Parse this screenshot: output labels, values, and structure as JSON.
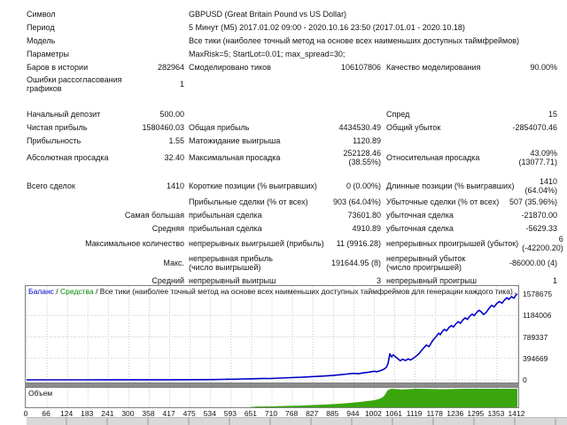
{
  "info": [
    {
      "label": "Символ",
      "value": "GBPUSD (Great Britain Pound vs US Dollar)"
    },
    {
      "label": "Период",
      "value": "5 Минут (M5) 2017.01.02 09:00 - 2020.10.16 23:50 (2017.01.01 - 2020.10.18)"
    },
    {
      "label": "Модель",
      "value": "Все тики (наиболее точный метод на основе всех наименьших доступных таймфреймов)"
    },
    {
      "label": "Параметры",
      "value": "MaxRisk=5; StartLot=0.01; max_spread=30;"
    }
  ],
  "rows": {
    "bars": {
      "l1": "Баров в истории",
      "v1": "282964",
      "l2": "Смоделировано тиков",
      "v2": "106107806",
      "l3": "Качество моделирования",
      "v3": "90.00%"
    },
    "mismatch": {
      "l1": "Ошибки рассогласования графиков",
      "v1": "1"
    },
    "deposit": {
      "l1": "Начальный депозит",
      "v1": "500.00",
      "l3": "Спред",
      "v3": "15"
    },
    "netprofit": {
      "l1": "Чистая прибыль",
      "v1": "1580460.03",
      "l2": "Общая прибыль",
      "v2": "4434530.49",
      "l3": "Общий убыток",
      "v3": "-2854070.46"
    },
    "profitability": {
      "l1": "Прибыльность",
      "v1": "1.55",
      "l2": "Матожидание выигрыша",
      "v2": "1120.89"
    },
    "drawdown": {
      "l1": "Абсолютная просадка",
      "v1": "32.40",
      "l2": "Максимальная просадка",
      "v2": "252128.46\n(38.55%)",
      "l3": "Относительная просадка",
      "v3": "43.09%\n(13077.71)"
    },
    "trades": {
      "l1": "Всего сделок",
      "v1": "1410",
      "l2": "Короткие позиции (% выигравших)",
      "v2": "0 (0.00%)",
      "l3": "Длинные позиции (% выигравших)",
      "v3": "1410 (64.04%)"
    },
    "profittrades": {
      "l2": "Прибыльные сделки (% от всех)",
      "v2": "903 (64.04%)",
      "l3": "Убыточные сделки (% от всех)",
      "v3": "507 (35.96%)"
    },
    "largest": {
      "l1": "Самая большая",
      "l2": "прибыльная сделка",
      "v2": "73601.80",
      "l3": "убыточная сделка",
      "v3": "-21870.00"
    },
    "average": {
      "l1": "Средняя",
      "l2": "прибыльная сделка",
      "v2": "4910.89",
      "l3": "убыточная сделка",
      "v3": "-5629.33"
    },
    "maxcount": {
      "l1": "Максимальное количество",
      "l2": "непрерывных выигрышей (прибыль)",
      "v2": "11 (9916.28)",
      "l3": "непрерывных проигрышей (убыток)",
      "v3": "6 (-42200.20)"
    },
    "maxprofit": {
      "l1": "Макс.",
      "l2": "непрерывная прибыль (число выигрышей)",
      "v2": "191644.95 (8)",
      "l3": "непрерывный убыток (число проигрышей)",
      "v3": "-86000.00 (4)"
    },
    "avgcont": {
      "l1": "Средний",
      "l2": "непрерывный выигрыш",
      "v2": "3",
      "l3": "непрерывный проигрыш",
      "v3": "1"
    }
  },
  "chart_data": {
    "type": "line",
    "legend": {
      "balance": "Баланс",
      "equity": "Средства",
      "sep": " / ",
      "rest": "Все тики (наиболее точный метод на основе всех наименьших доступных таймфреймов для генерации каждого тика) / 90.00%"
    },
    "volume_label": "Объем",
    "x_ticks": [
      0,
      66,
      124,
      183,
      241,
      300,
      358,
      417,
      475,
      534,
      593,
      651,
      710,
      768,
      827,
      885,
      944,
      1002,
      1061,
      1119,
      1178,
      1236,
      1295,
      1353,
      1412
    ],
    "y_ticks": [
      1578675,
      1184006,
      789337,
      394669,
      0
    ],
    "x_range": [
      0,
      1412
    ],
    "y_range": [
      0,
      1578675
    ],
    "grid": true,
    "colors": {
      "balance": "#0000c8",
      "equity": "#009000",
      "volume": "#3aa60d",
      "grid": "#c9c9c9",
      "frame": "#808080"
    },
    "series": [
      {
        "name": "Баланс",
        "points": [
          [
            0,
            500
          ],
          [
            80,
            500
          ],
          [
            160,
            700
          ],
          [
            240,
            900
          ],
          [
            320,
            1100
          ],
          [
            400,
            1500
          ],
          [
            480,
            2500
          ],
          [
            540,
            5000
          ],
          [
            560,
            8000
          ],
          [
            580,
            12000
          ],
          [
            600,
            11000
          ],
          [
            620,
            16000
          ],
          [
            650,
            20000
          ],
          [
            680,
            26000
          ],
          [
            700,
            24000
          ],
          [
            730,
            32000
          ],
          [
            760,
            40000
          ],
          [
            790,
            48000
          ],
          [
            820,
            58000
          ],
          [
            850,
            68000
          ],
          [
            880,
            80000
          ],
          [
            900,
            92000
          ],
          [
            920,
            105000
          ],
          [
            940,
            118000
          ],
          [
            955,
            112000
          ],
          [
            970,
            128000
          ],
          [
            985,
            142000
          ],
          [
            1000,
            158000
          ],
          [
            1008,
            150000
          ],
          [
            1018,
            170000
          ],
          [
            1028,
            195000
          ],
          [
            1035,
            230000
          ],
          [
            1040,
            300000
          ],
          [
            1045,
            480000
          ],
          [
            1050,
            420000
          ],
          [
            1055,
            460000
          ],
          [
            1060,
            430000
          ],
          [
            1068,
            390000
          ],
          [
            1075,
            350000
          ],
          [
            1082,
            380000
          ],
          [
            1090,
            355000
          ],
          [
            1098,
            385000
          ],
          [
            1105,
            365000
          ],
          [
            1112,
            395000
          ],
          [
            1120,
            430000
          ],
          [
            1130,
            490000
          ],
          [
            1140,
            570000
          ],
          [
            1150,
            640000
          ],
          [
            1158,
            610000
          ],
          [
            1165,
            690000
          ],
          [
            1172,
            750000
          ],
          [
            1180,
            810000
          ],
          [
            1186,
            860000
          ],
          [
            1190,
            830000
          ],
          [
            1196,
            890000
          ],
          [
            1202,
            930000
          ],
          [
            1208,
            900000
          ],
          [
            1215,
            960000
          ],
          [
            1222,
            1000000
          ],
          [
            1228,
            970000
          ],
          [
            1235,
            1030000
          ],
          [
            1242,
            1070000
          ],
          [
            1248,
            1040000
          ],
          [
            1255,
            1100000
          ],
          [
            1262,
            1140000
          ],
          [
            1268,
            1110000
          ],
          [
            1275,
            1170000
          ],
          [
            1282,
            1210000
          ],
          [
            1288,
            1180000
          ],
          [
            1295,
            1240000
          ],
          [
            1302,
            1280000
          ],
          [
            1308,
            1250000
          ],
          [
            1315,
            1200000
          ],
          [
            1322,
            1240000
          ],
          [
            1330,
            1310000
          ],
          [
            1338,
            1370000
          ],
          [
            1345,
            1340000
          ],
          [
            1352,
            1400000
          ],
          [
            1360,
            1440000
          ],
          [
            1368,
            1410000
          ],
          [
            1375,
            1470000
          ],
          [
            1382,
            1510000
          ],
          [
            1388,
            1480000
          ],
          [
            1395,
            1530000
          ],
          [
            1402,
            1500000
          ],
          [
            1408,
            1560000
          ],
          [
            1412,
            1580460
          ]
        ]
      }
    ],
    "volume_profile": [
      [
        0,
        0
      ],
      [
        640,
        0
      ],
      [
        660,
        0.04
      ],
      [
        700,
        0.05
      ],
      [
        740,
        0.07
      ],
      [
        780,
        0.09
      ],
      [
        820,
        0.12
      ],
      [
        860,
        0.15
      ],
      [
        890,
        0.18
      ],
      [
        920,
        0.22
      ],
      [
        950,
        0.27
      ],
      [
        975,
        0.32
      ],
      [
        1000,
        0.38
      ],
      [
        1015,
        0.45
      ],
      [
        1025,
        0.55
      ],
      [
        1032,
        0.7
      ],
      [
        1038,
        0.9
      ],
      [
        1048,
        1.0
      ],
      [
        1080,
        0.96
      ],
      [
        1120,
        1.0
      ],
      [
        1200,
        0.97
      ],
      [
        1260,
        1.0
      ],
      [
        1412,
        1.0
      ]
    ]
  }
}
